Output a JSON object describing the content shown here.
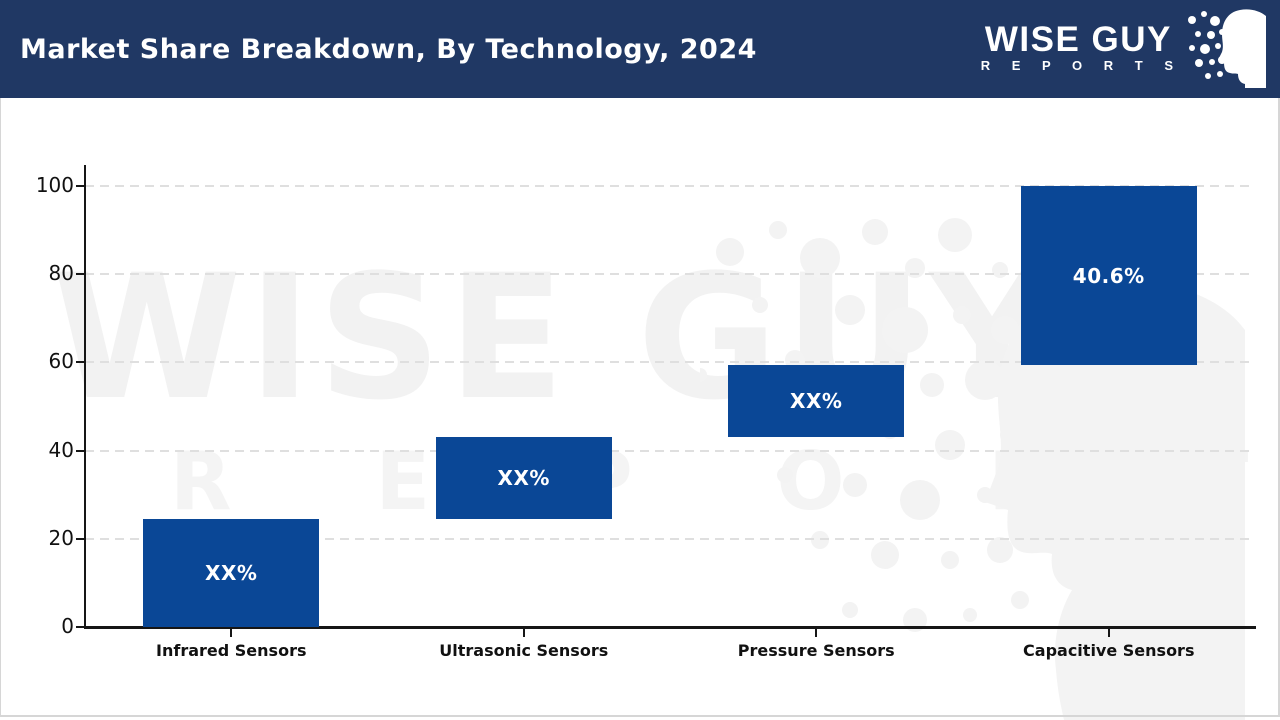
{
  "header": {
    "title": "Market Share Breakdown, By Technology, 2024",
    "logo_line1": "WISE GUY",
    "logo_line2": "R E P O R T S"
  },
  "watermark": {
    "line1": "WISE GUY",
    "line2": "R E P O R T S"
  },
  "colors": {
    "header_bg": "#203864",
    "bar": "#0a4796",
    "axis": "#161616",
    "grid": "#dfdfdf",
    "watermark": "#f2f2f2",
    "bar_label_text": "#ffffff",
    "title_text": "#ffffff"
  },
  "chart_data": {
    "type": "bar",
    "subtype": "waterfall",
    "title": "Market Share Breakdown, By Technology, 2024",
    "xlabel": "",
    "ylabel": "",
    "ylim": [
      0,
      100
    ],
    "yticks": [
      0,
      20,
      40,
      60,
      80,
      100
    ],
    "grid": "horizontal-dashed",
    "legend": "none",
    "categories": [
      "Infrared Sensors",
      "Ultrasonic Sensors",
      "Pressure Sensors",
      "Capacitive Sensors"
    ],
    "segments": [
      {
        "category": "Infrared Sensors",
        "start": 0,
        "end": 24.5,
        "value": 24.5,
        "value_label": "XX%"
      },
      {
        "category": "Ultrasonic Sensors",
        "start": 24.5,
        "end": 43.0,
        "value": 18.5,
        "value_label": "XX%"
      },
      {
        "category": "Pressure Sensors",
        "start": 43.0,
        "end": 59.4,
        "value": 16.4,
        "value_label": "XX%"
      },
      {
        "category": "Capacitive Sensors",
        "start": 59.4,
        "end": 100,
        "value": 40.6,
        "value_label": "40.6%"
      }
    ]
  }
}
